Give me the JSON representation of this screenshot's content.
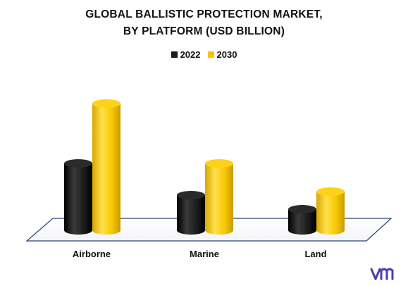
{
  "title_line1": "GLOBAL BALLISTIC PROTECTION MARKET,",
  "title_line2": "BY PLATFORM (USD BILLION)",
  "legend": [
    {
      "label": "2022",
      "color": "#1a1a1a"
    },
    {
      "label": "2030",
      "color": "#f5c400"
    }
  ],
  "logo_text": "vm",
  "chart_data": {
    "type": "bar",
    "categories": [
      "Airborne",
      "Marine",
      "Land"
    ],
    "series": [
      {
        "name": "2022",
        "values": [
          1.9,
          1.0,
          0.6
        ],
        "color": "#1a1a1a"
      },
      {
        "name": "2030",
        "values": [
          3.6,
          1.9,
          1.1
        ],
        "color": "#f5c400"
      }
    ],
    "ylim": [
      0,
      3.8
    ],
    "grid": false,
    "legend_position": "top-center"
  }
}
